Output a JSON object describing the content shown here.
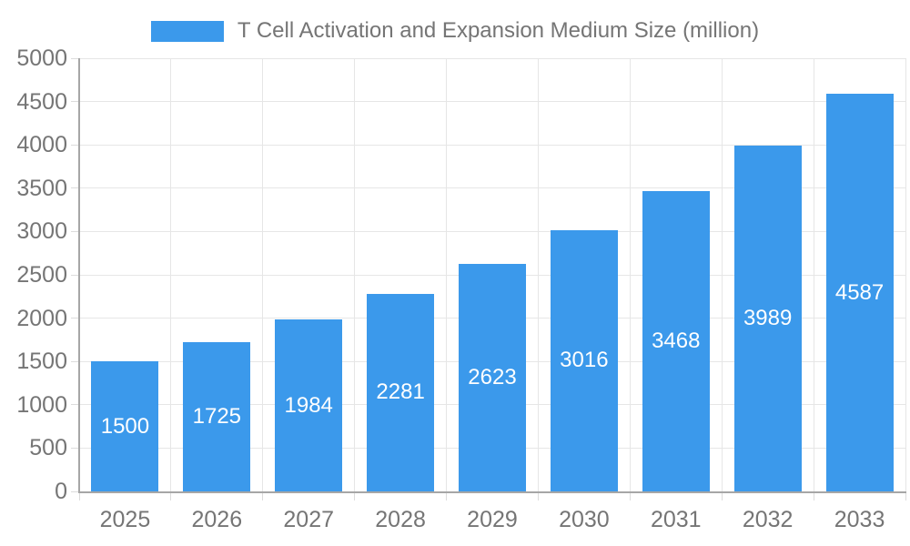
{
  "chart_data": {
    "type": "bar",
    "title": "T Cell Activation and Expansion Medium Size (million)",
    "categories": [
      "2025",
      "2026",
      "2027",
      "2028",
      "2029",
      "2030",
      "2031",
      "2032",
      "2033"
    ],
    "values": [
      1500,
      1725,
      1984,
      2281,
      2623,
      3016,
      3468,
      3989,
      4587
    ],
    "xlabel": "",
    "ylabel": "",
    "ylim": [
      0,
      5000
    ],
    "ytick_step": 500,
    "yticks": [
      0,
      500,
      1000,
      1500,
      2000,
      2500,
      3000,
      3500,
      4000,
      4500,
      5000
    ],
    "grid": true,
    "legend_position": "top",
    "value_labels_shown_inside_bars": true
  },
  "legend": {
    "swatch_icon": "legend-swatch",
    "label": "T Cell Activation and Expansion Medium Size (million)"
  },
  "colors": {
    "bar": "#3b99eb",
    "axis_line": "#a6a6a6",
    "gridline": "#e6e6e6",
    "tick": "#dcdcdc",
    "label_text": "#757575",
    "value_text": "#ffffff",
    "background": "#ffffff"
  }
}
